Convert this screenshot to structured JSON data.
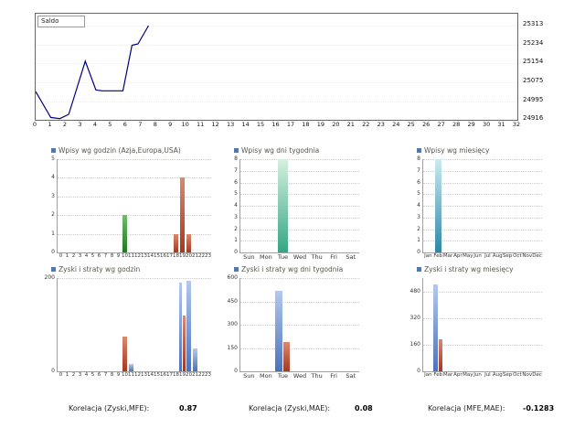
{
  "colors": {
    "balance_line": "#000080",
    "profit_blue": "#4a72bc",
    "loss_red": "#a5371d",
    "asia_green": "#1d7a1d",
    "weekday_teal": "#35a584",
    "month_cyan": "#2f86a6"
  },
  "footer": {
    "correlations": [
      {
        "label": "Korelacja (Zyski,MFE):",
        "value": "0.87"
      },
      {
        "label": "Korelacja (Zyski,MAE):",
        "value": "0.08"
      },
      {
        "label": "Korelacja (MFE,MAE):",
        "value": "-0.1283"
      }
    ]
  },
  "chart_data": [
    {
      "type": "line",
      "title": "Saldo",
      "x": [
        0,
        1,
        1.6,
        2.2,
        3.3,
        4,
        4.4,
        5.8,
        6.4,
        6.8,
        7.5
      ],
      "values": [
        25035,
        24926,
        24921,
        24939,
        25163,
        25042,
        25038,
        25038,
        25230,
        25236,
        25313
      ],
      "xlim": [
        0,
        32
      ],
      "xticks": [
        0,
        1,
        2,
        3,
        4,
        5,
        6,
        7,
        8,
        9,
        10,
        11,
        12,
        13,
        14,
        15,
        16,
        17,
        18,
        19,
        20,
        21,
        22,
        23,
        24,
        25,
        26,
        27,
        28,
        29,
        30,
        31,
        32
      ],
      "ylim": [
        24916,
        25313
      ],
      "yticks": [
        24916,
        24995,
        25075,
        25154,
        25234,
        25313
      ],
      "line_color": "#000080",
      "legend_position": "top-left",
      "grid": "light"
    },
    {
      "type": "bar",
      "title": "Wpisy wg godzin (Azja,Europa,USA)",
      "categories": [
        "0",
        "1",
        "2",
        "3",
        "4",
        "5",
        "6",
        "7",
        "8",
        "9",
        "10",
        "11",
        "12",
        "13",
        "14",
        "15",
        "16",
        "17",
        "18",
        "19",
        "20",
        "21",
        "22",
        "23"
      ],
      "bars": [
        {
          "category": "10",
          "value": 2,
          "color": "green"
        },
        {
          "category": "18",
          "value": 1,
          "color": "red"
        },
        {
          "category": "19",
          "value": 4,
          "color": "red"
        },
        {
          "category": "20",
          "value": 1,
          "color": "red"
        }
      ],
      "ylim": [
        0,
        5
      ],
      "yticks": [
        0,
        1,
        2,
        3,
        4,
        5
      ]
    },
    {
      "type": "bar",
      "title": "Wpisy wg dni tygodnia",
      "categories": [
        "Sun",
        "Mon",
        "Tue",
        "Wed",
        "Thu",
        "Fri",
        "Sat"
      ],
      "bars": [
        {
          "category": "Tue",
          "value": 8,
          "color": "teal"
        }
      ],
      "ylim": [
        0,
        8
      ],
      "yticks": [
        0,
        1,
        2,
        3,
        4,
        5,
        6,
        7,
        8
      ]
    },
    {
      "type": "bar",
      "title": "Wpisy wg miesięcy",
      "categories": [
        "Jan",
        "Feb",
        "Mar",
        "Apr",
        "May",
        "Jun",
        "Jul",
        "Aug",
        "Sep",
        "Oct",
        "Nov",
        "Dec"
      ],
      "bars": [
        {
          "category": "Feb",
          "value": 8,
          "color": "cyan"
        }
      ],
      "ylim": [
        0,
        8
      ],
      "yticks": [
        0,
        1,
        2,
        3,
        4,
        5,
        6,
        7,
        8
      ]
    },
    {
      "type": "bar",
      "title": "Zyski i straty wg godzin",
      "categories": [
        "0",
        "1",
        "2",
        "3",
        "4",
        "5",
        "6",
        "7",
        "8",
        "9",
        "10",
        "11",
        "12",
        "13",
        "14",
        "15",
        "16",
        "17",
        "18",
        "19",
        "20",
        "21",
        "22",
        "23"
      ],
      "bars": [
        {
          "category": "10",
          "value": 75,
          "color": "red"
        },
        {
          "category": "11",
          "value": 15,
          "color": "blue"
        },
        {
          "category": "19",
          "value": 190,
          "color": "blue"
        },
        {
          "category": "19",
          "value": 120,
          "color": "red"
        },
        {
          "category": "20",
          "value": 195,
          "color": "blue"
        },
        {
          "category": "21",
          "value": 50,
          "color": "blue"
        }
      ],
      "ylim": [
        0,
        200
      ],
      "yticks": [
        0,
        200
      ]
    },
    {
      "type": "bar",
      "title": "Zyski i straty wg dni tygodnia",
      "categories": [
        "Sun",
        "Mon",
        "Tue",
        "Wed",
        "Thu",
        "Fri",
        "Sat"
      ],
      "bars": [
        {
          "category": "Tue",
          "value": 520,
          "color": "blue"
        },
        {
          "category": "Tue",
          "value": 190,
          "color": "red"
        }
      ],
      "ylim": [
        0,
        600
      ],
      "yticks": [
        0,
        150,
        300,
        450,
        600
      ]
    },
    {
      "type": "bar",
      "title": "Zyski i straty wg miesięcy",
      "categories": [
        "Jan",
        "Feb",
        "Mar",
        "Apr",
        "May",
        "Jun",
        "Jul",
        "Aug",
        "Sep",
        "Oct",
        "Nov",
        "Dec"
      ],
      "bars": [
        {
          "category": "Feb",
          "value": 520,
          "color": "blue"
        },
        {
          "category": "Feb",
          "value": 190,
          "color": "red"
        }
      ],
      "ylim": [
        0,
        560
      ],
      "yticks": [
        0,
        160,
        320,
        480
      ]
    }
  ]
}
